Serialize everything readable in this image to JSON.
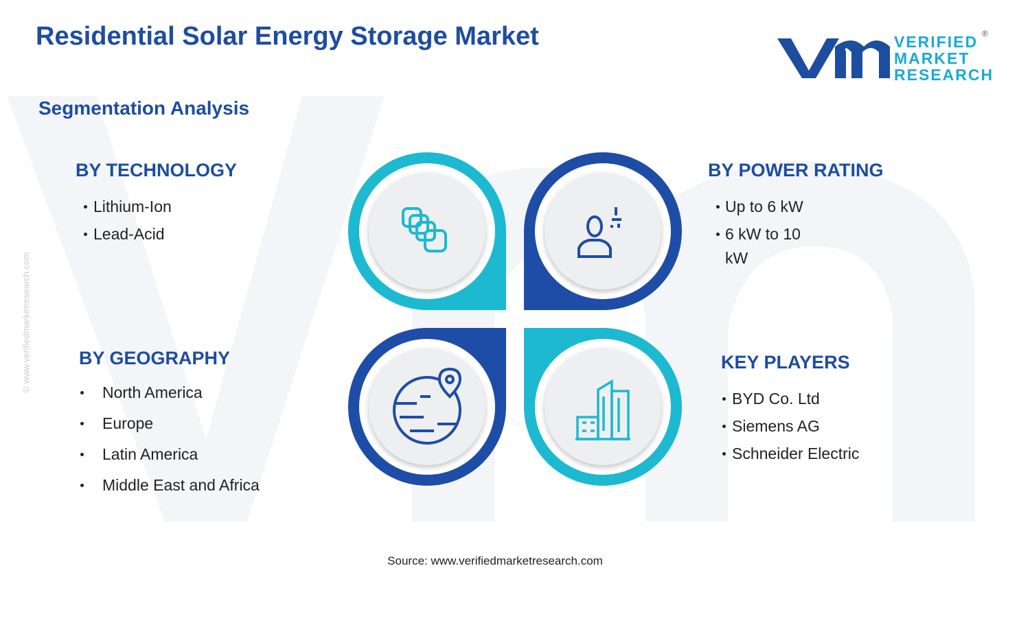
{
  "header": {
    "title": "Residential Solar Energy Storage Market",
    "subtitle": "Segmentation Analysis"
  },
  "logo": {
    "lines": [
      "VERIFIED",
      "MARKET",
      "RESEARCH"
    ],
    "mark": "®"
  },
  "sections": [
    {
      "heading": "BY TECHNOLOGY",
      "items": [
        "Lithium-Ion",
        "Lead-Acid"
      ]
    },
    {
      "heading": "BY POWER RATING",
      "items": [
        "Up to 6 kW",
        "6 kW to 10 kW"
      ]
    },
    {
      "heading": "BY GEOGRAPHY",
      "items": [
        "North America",
        "Europe",
        "Latin America",
        "Middle East and Africa"
      ]
    },
    {
      "heading": "KEY PLAYERS",
      "items": [
        "BYD Co. Ltd",
        "Siemens AG",
        "Schneider Electric"
      ]
    }
  ],
  "source": "Source: www.verifiedmarketresearch.com",
  "side_note": "© www.verifiedmarketresearch.com"
}
